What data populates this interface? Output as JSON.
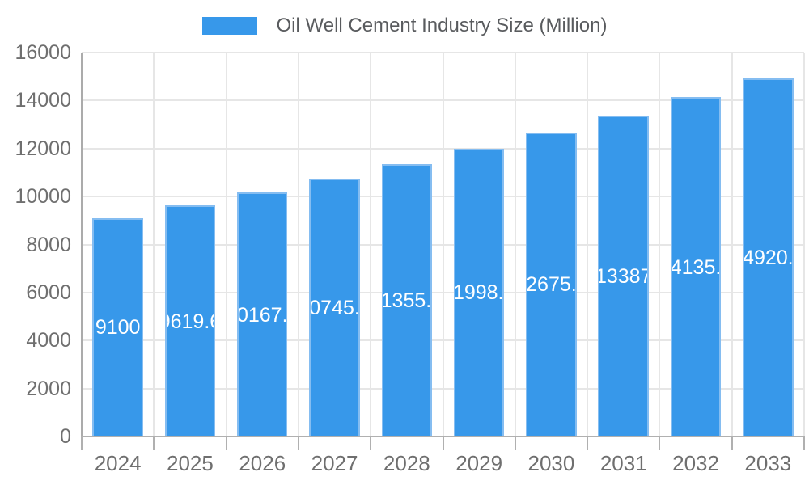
{
  "chart_data": {
    "type": "bar",
    "title": "Oil Well Cement Industry Size (Million)",
    "categories": [
      "2024",
      "2025",
      "2026",
      "2027",
      "2028",
      "2029",
      "2030",
      "2031",
      "2032",
      "2033"
    ],
    "values": [
      9100,
      9619.6,
      10167.3,
      10745.3,
      11355.4,
      11998.4,
      12675.1,
      13387,
      14135.1,
      14920.2
    ],
    "y_ticks": [
      0,
      2000,
      4000,
      6000,
      8000,
      10000,
      12000,
      14000,
      16000
    ],
    "ylim": [
      0,
      16000
    ],
    "bar_color": "#3798ea",
    "bar_border_color": "#85bdf1",
    "value_label_color": "#ffffff",
    "grid": true,
    "legend_position": "top"
  }
}
